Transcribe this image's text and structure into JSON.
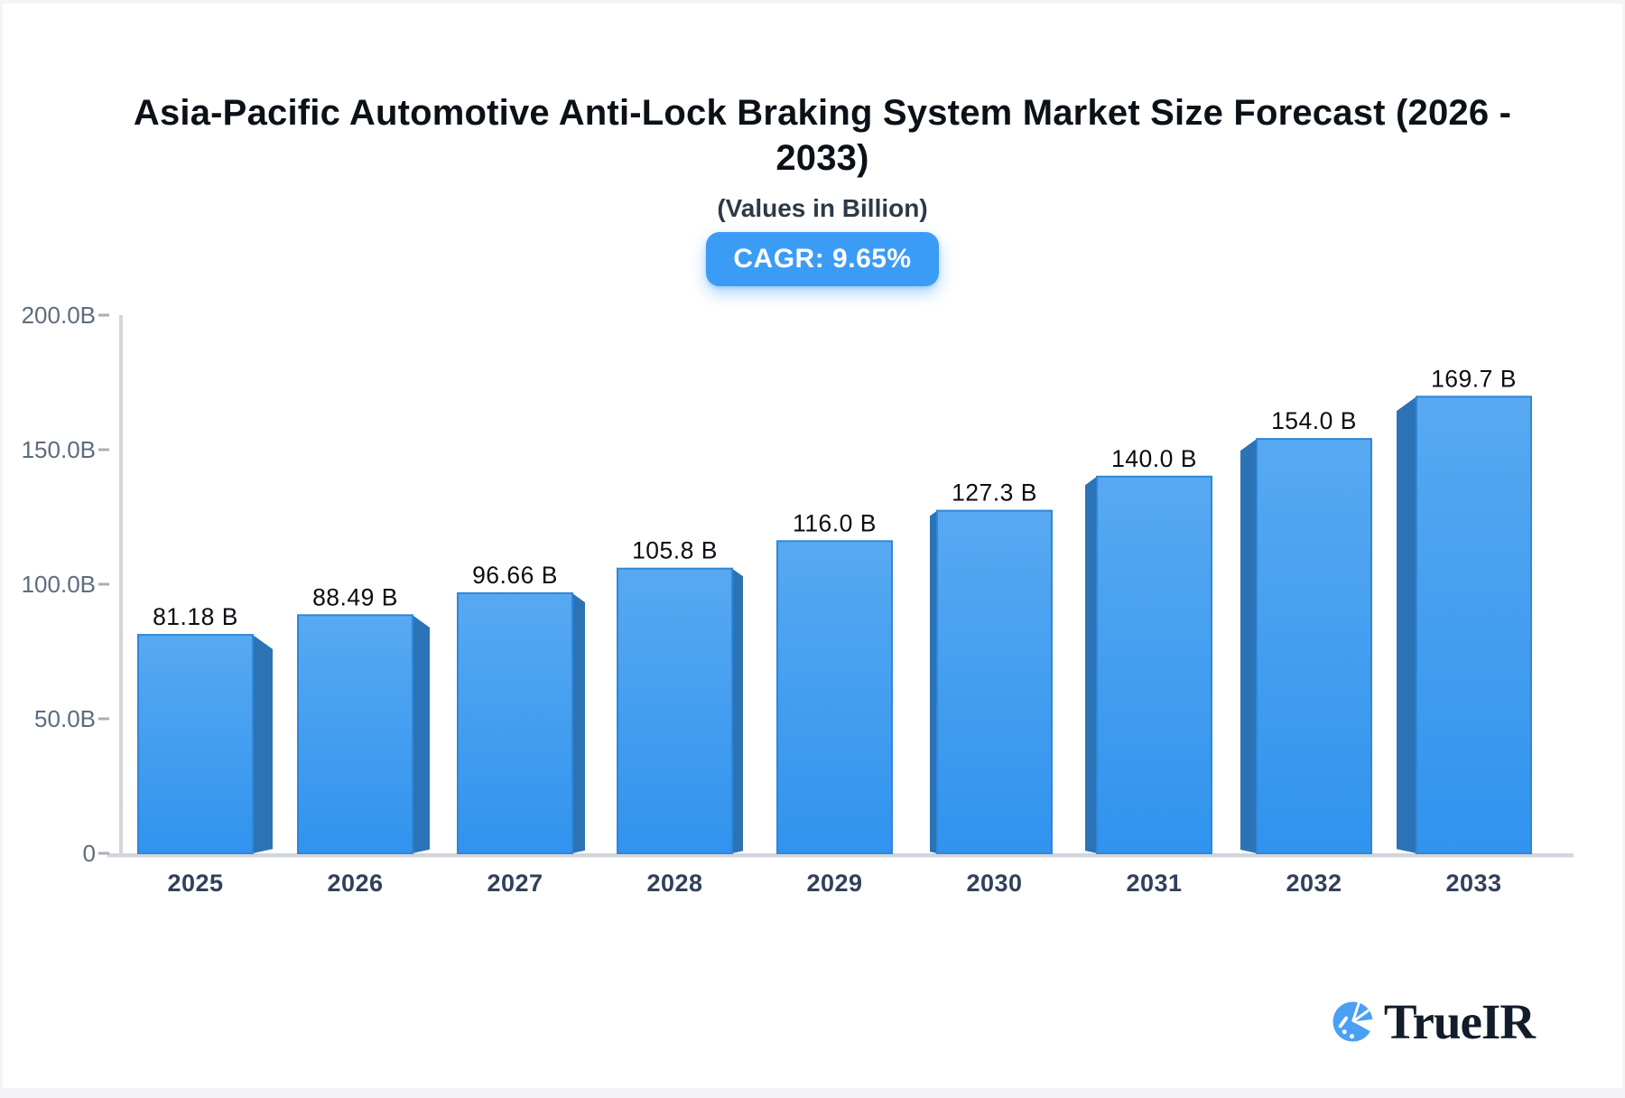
{
  "header": {
    "title_lines": [
      "Asia-Pacific Automotive Anti-Lock Braking System Market Size Forecast (2026 -",
      "2033)"
    ],
    "subtitle": "(Values in Billion)",
    "cagr_badge": "CAGR: 9.65%"
  },
  "chart_data": {
    "type": "bar",
    "title": "Asia-Pacific Automotive Anti-Lock Braking System Market Size Forecast (2026 - 2033)",
    "subtitle": "(Values in Billion)",
    "annotation": "CAGR: 9.65%",
    "categories": [
      "2025",
      "2026",
      "2027",
      "2028",
      "2029",
      "2030",
      "2031",
      "2032",
      "2033"
    ],
    "values": [
      81.18,
      88.49,
      96.66,
      105.8,
      116.0,
      127.3,
      140.0,
      154.0,
      169.7
    ],
    "value_labels": [
      "81.18 B",
      "88.49 B",
      "96.66 B",
      "105.8 B",
      "116.0 B",
      "127.3 B",
      "140.0 B",
      "154.0 B",
      "169.7 B"
    ],
    "unit": "Billion",
    "ylim": [
      0,
      200
    ],
    "y_ticks": [
      {
        "label": "200.0B",
        "value": 200
      },
      {
        "label": "150.0B",
        "value": 150
      },
      {
        "label": "100.0B",
        "value": 100
      },
      {
        "label": "50.0B",
        "value": 50
      },
      {
        "label": "0",
        "value": 0
      }
    ],
    "grid": false,
    "legend": false,
    "bar_style": "3d-perspective",
    "colors": {
      "bar_top": "#58a9f1",
      "bar_bottom": "#3093ee",
      "bar_side": "#2c73b6",
      "bar_stroke": "#2f87d8",
      "axis_line": "#d2d5dc",
      "tick_dash": "#a9b0bb",
      "y_tick_label": "#5d6b7e",
      "x_tick_label": "#32405a",
      "value_label": "#0a0d12"
    }
  },
  "colors": {
    "accent": "#3b9cf5",
    "page_background": "#f4f4f6",
    "card_background": "#ffffff"
  },
  "brand": {
    "name": "TrueIR",
    "icon": "pie-chart-icon",
    "icon_color": "#4aa0f2",
    "text_color": "#131c2b"
  }
}
